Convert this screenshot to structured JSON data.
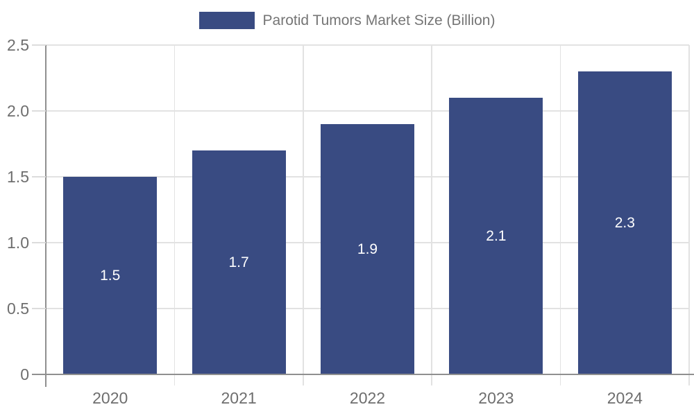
{
  "chart_data": {
    "type": "bar",
    "title": "Parotid Tumors Market Size (Billion)",
    "categories": [
      "2020",
      "2021",
      "2022",
      "2023",
      "2024"
    ],
    "values": [
      1.5,
      1.7,
      1.9,
      2.1,
      2.3
    ],
    "bar_labels": [
      "1.5",
      "1.7",
      "1.9",
      "2.1",
      "2.3"
    ],
    "xlabel": "",
    "ylabel": "",
    "ylim": [
      0,
      2.5
    ],
    "y_ticks": [
      {
        "value": 0,
        "label": "0"
      },
      {
        "value": 0.5,
        "label": "0.5"
      },
      {
        "value": 1.0,
        "label": "1.0"
      },
      {
        "value": 1.5,
        "label": "1.5"
      },
      {
        "value": 2.0,
        "label": "2.0"
      },
      {
        "value": 2.5,
        "label": "2.5"
      }
    ],
    "grid": true,
    "legend_position": "top-center",
    "colors": {
      "bar": "#394B82",
      "bar_value_label": "#ffffff",
      "axis_label": "#6e6e6e",
      "legend_text": "#757575",
      "gridline": "#e2e2e2",
      "axis_line": "#8f8f8f"
    }
  }
}
